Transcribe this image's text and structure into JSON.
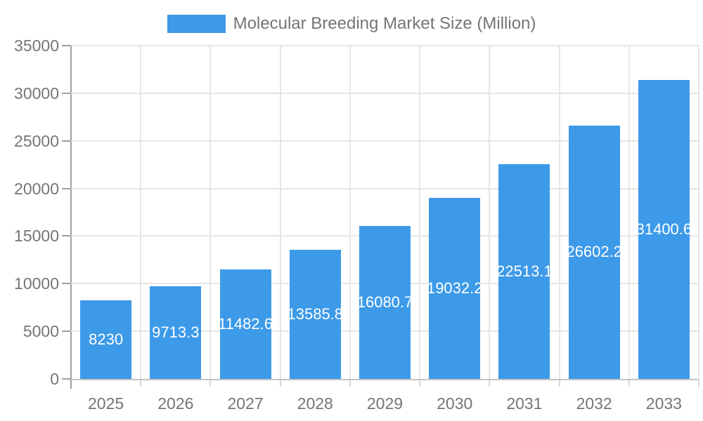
{
  "legend": {
    "label": "Molecular Breeding Market Size (Million)",
    "swatch_color": "#3d9ae9"
  },
  "chart_data": {
    "type": "bar",
    "title": "Molecular Breeding Market Size (Million)",
    "categories": [
      "2025",
      "2026",
      "2027",
      "2028",
      "2029",
      "2030",
      "2031",
      "2032",
      "2033"
    ],
    "series": [
      {
        "name": "Molecular Breeding Market Size (Million)",
        "values": [
          8230,
          9713.3,
          11482.6,
          13585.8,
          16080.7,
          19032.2,
          22513.1,
          26602.2,
          31400.6
        ],
        "labels": [
          "8230",
          "9713.3",
          "11482.6",
          "13585.8",
          "16080.7",
          "19032.2",
          "22513.1",
          "26602.2",
          "31400.6"
        ]
      }
    ],
    "xlabel": "",
    "ylabel": "",
    "y_ticks": [
      0,
      5000,
      10000,
      15000,
      20000,
      25000,
      30000,
      35000
    ],
    "ylim": [
      0,
      35000
    ],
    "grid": true,
    "legend_position": "top",
    "colors": {
      "bar": "#3d9ae9",
      "bar_label_text": "#ffffff",
      "axis_text": "#757575",
      "gridline": "#e6e6e6",
      "axis_line": "#9e9e9e",
      "baseline": "#c4c4c4",
      "x_tick": "#d8d8d8"
    }
  }
}
